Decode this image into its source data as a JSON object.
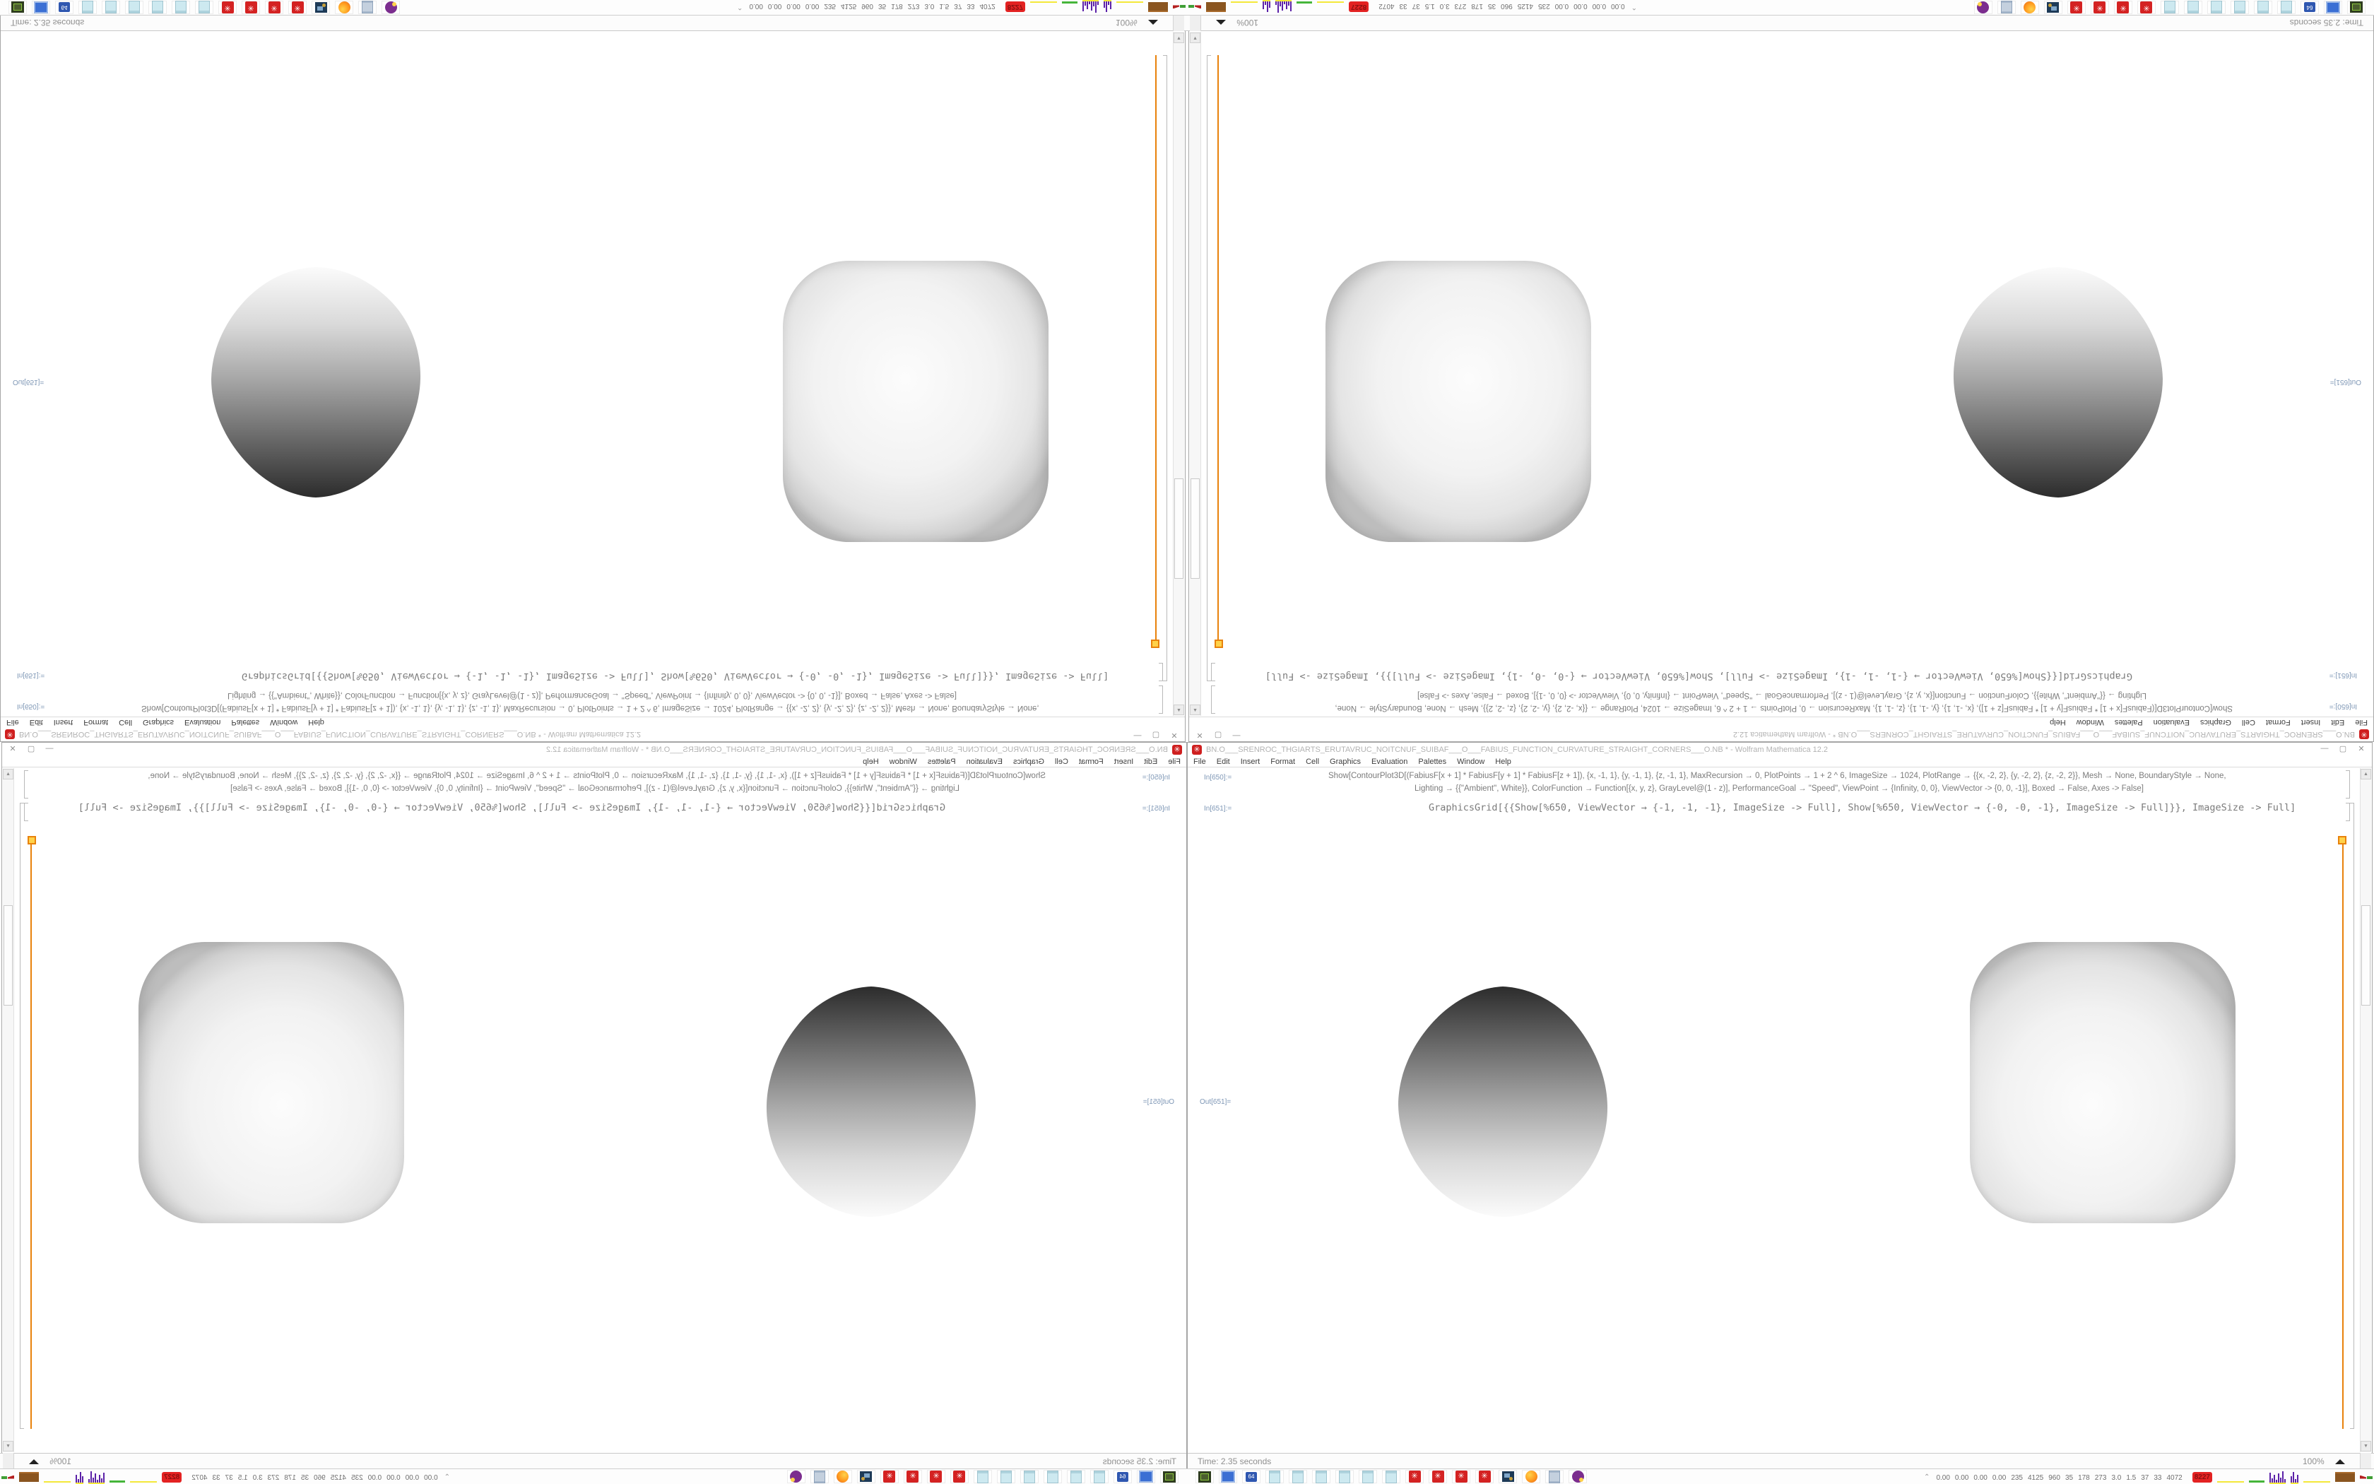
{
  "window": {
    "title": "BN.O___SRENROC_THGIARTS_ERUTAVRUC_NOITCNUF_SUIBAF___O___FABIUS_FUNCTION_CURVATURE_STRAIGHT_CORNERS___O.NB * - Wolfram Mathematica 12.2",
    "app_icon_glyph": "✳",
    "buttons": {
      "minimize": "—",
      "maximize": "▢",
      "close": "✕"
    },
    "menu": [
      "File",
      "Edit",
      "Insert",
      "Format",
      "Cell",
      "Graphics",
      "Evaluation",
      "Palettes",
      "Window",
      "Help"
    ]
  },
  "notebook": {
    "cell1": {
      "label": "In[650]:=",
      "line1": "Show[ContourPlot3D[(FabiusF[x + 1] * FabiusF[y + 1] * FabiusF[z + 1]), {x, -1, 1}, {y, -1, 1}, {z, -1, 1}, MaxRecursion → 0, PlotPoints → 1 + 2 ^ 6, ImageSize → 1024, PlotRange → {{x, -2, 2}, {y, -2, 2}, {z, -2, 2}}, Mesh → None, BoundaryStyle → None,",
      "line2": "Lighting → {{\"Ambient\", White}}, ColorFunction → Function[{x, y, z}, GrayLevel@(1 - z)], PerformanceGoal → \"Speed\", ViewPoint → {Infinity, 0, 0}, ViewVector -> {0, 0, -1}], Boxed → False, Axes -> False]"
    },
    "cell2": {
      "label": "In[651]:=",
      "line1": "GraphicsGrid[{{Show[%650, ViewVector → {-1, -1, -1}, ImageSize -> Full], Show[%650, ViewVector → {-0, -0, -1}, ImageSize -> Full]}}, ImageSize -> Full]"
    },
    "out_label": "Out[651]=",
    "scroll_up_glyph": "▲",
    "scroll_down_glyph": "▼"
  },
  "status": {
    "time": "Time: 2.35 seconds",
    "zoom": "100%"
  },
  "taskbar": {
    "chevron": "⌃",
    "icons": [
      {
        "name": "console",
        "kind": "console"
      },
      {
        "name": "pc-monitor",
        "kind": "pc"
      },
      {
        "name": "floppy-64",
        "kind": "floppy",
        "label": "64"
      },
      {
        "name": "notepad-1",
        "kind": "notepad"
      },
      {
        "name": "notepad-2",
        "kind": "notepad"
      },
      {
        "name": "notepad-3",
        "kind": "notepad"
      },
      {
        "name": "notepad-4",
        "kind": "notepad"
      },
      {
        "name": "notepad-5",
        "kind": "notepad"
      },
      {
        "name": "notepad-6",
        "kind": "notepad"
      },
      {
        "name": "mathematica-1",
        "kind": "wolf",
        "glyph": "✳"
      },
      {
        "name": "mathematica-2",
        "kind": "wolf",
        "glyph": "✳"
      },
      {
        "name": "mathematica-3",
        "kind": "wolf",
        "glyph": "✳"
      },
      {
        "name": "mathematica-4",
        "kind": "wolf",
        "glyph": "✳"
      },
      {
        "name": "screen-capture",
        "kind": "cam"
      },
      {
        "name": "firefox",
        "kind": "fox"
      },
      {
        "name": "scroll-doc",
        "kind": "scroll"
      },
      {
        "name": "avatar-app",
        "kind": "avatar"
      }
    ],
    "stats": {
      "numbers": [
        "0.00",
        "0.00",
        "0.00",
        "0.00",
        "235",
        "4125",
        "960",
        "35",
        "178",
        "273",
        "3.0",
        "1.5",
        "37",
        "33",
        "4072"
      ],
      "badge": "8227",
      "spike_heights_1": [
        14,
        6,
        11,
        4,
        13,
        7,
        16,
        5
      ],
      "spike_heights_2": [
        9,
        15,
        5,
        11
      ]
    }
  },
  "colors": {
    "accent_orange_bracket": "#e8820c",
    "badge_red": "#e32222",
    "mathematica_red": "#d42222",
    "label_blue": "#7d96b5",
    "blob_dark": "#2c2c2c",
    "blob_light": "#fbfbfb"
  }
}
